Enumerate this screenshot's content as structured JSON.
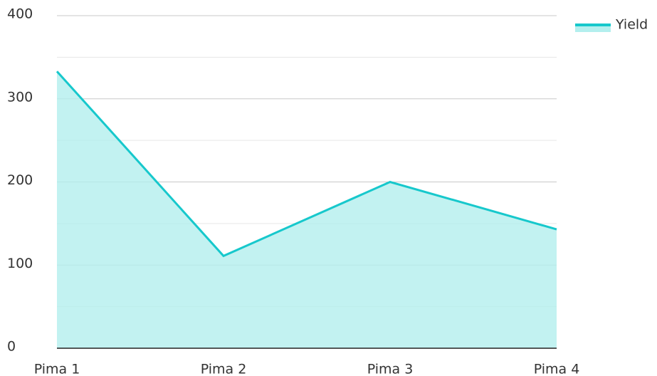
{
  "chart_data": {
    "type": "area",
    "categories": [
      "Pima 1",
      "Pima 2",
      "Pima 3",
      "Pima 4"
    ],
    "series": [
      {
        "name": "Yield",
        "color": "#17c8cc",
        "fill": "#b3efee",
        "values": [
          333,
          111,
          200,
          143
        ]
      }
    ],
    "ylim": [
      0,
      400
    ],
    "yticks": [
      0,
      100,
      200,
      300,
      400
    ],
    "minor_yticks": [
      50,
      150,
      250,
      350
    ],
    "grid": true,
    "legend": "top-right"
  }
}
